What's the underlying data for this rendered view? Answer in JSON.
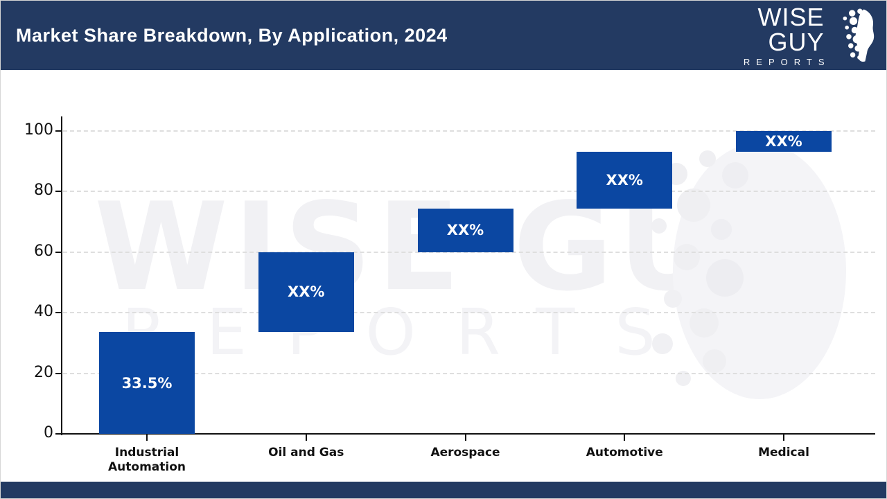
{
  "header": {
    "title": "Market Share Breakdown, By Application, 2024",
    "logo": {
      "line1": "WISE GUY",
      "line2": "REPORTS"
    }
  },
  "watermark": {
    "line1": "WISE GUY",
    "line2": "REPORTS"
  },
  "colors": {
    "header_bg": "#233a62",
    "footer_bg": "#233a62",
    "bar": "#0b47a2",
    "grid": "#dedede",
    "axis": "#111111",
    "bar_label": "#ffffff",
    "watermark": "#f1f1f4"
  },
  "chart_data": {
    "type": "bar",
    "subtype": "waterfall",
    "title": "Market Share Breakdown, By Application, 2024",
    "xlabel": "",
    "ylabel": "",
    "ylim": [
      0,
      100
    ],
    "yticks": [
      0,
      20,
      40,
      60,
      80,
      100
    ],
    "grid": true,
    "grid_style": "dashed",
    "categories": [
      "Industrial Automation",
      "Oil and Gas",
      "Aerospace",
      "Automotive",
      "Medical"
    ],
    "segments": [
      {
        "category": "Industrial Automation",
        "start": 0,
        "end": 33.5,
        "increment": 33.5,
        "label": "33.5%"
      },
      {
        "category": "Oil and Gas",
        "start": 33.5,
        "end": 60.0,
        "increment": 26.5,
        "label": "XX%"
      },
      {
        "category": "Aerospace",
        "start": 60.0,
        "end": 74.3,
        "increment": 14.3,
        "label": "XX%"
      },
      {
        "category": "Automotive",
        "start": 74.3,
        "end": 93.0,
        "increment": 18.7,
        "label": "XX%"
      },
      {
        "category": "Medical",
        "start": 93.0,
        "end": 100.0,
        "increment": 7.0,
        "label": "XX%"
      }
    ]
  }
}
